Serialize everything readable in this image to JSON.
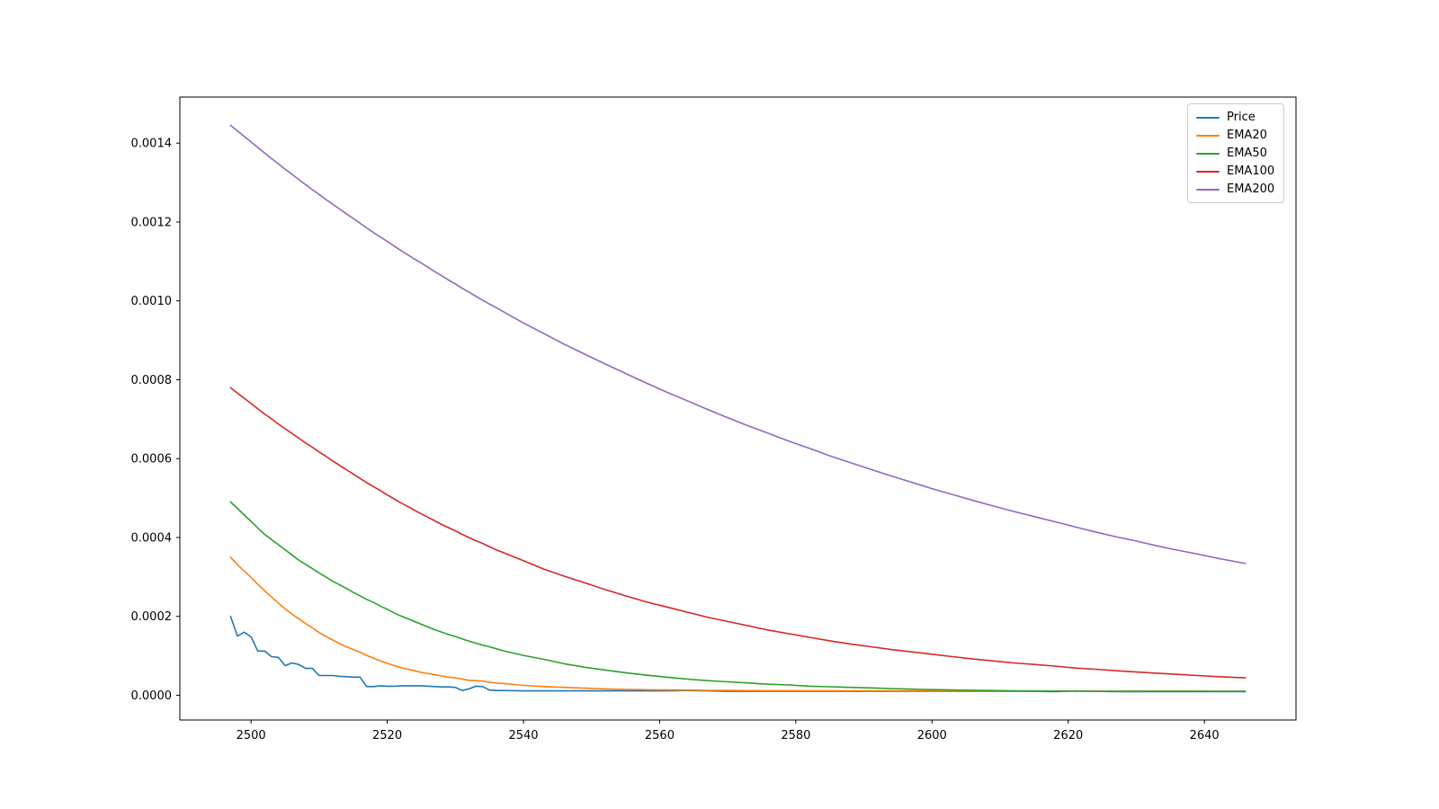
{
  "figure": {
    "background": "#ffffff",
    "axis_color": "#000000",
    "tick_label_color": "#000000"
  },
  "legend": {
    "position": "upper-right",
    "border_color": "#cccccc",
    "background": "#ffffff"
  },
  "chart_data": {
    "type": "line",
    "title": "",
    "xlabel": "",
    "ylabel": "",
    "grid": false,
    "legend_position": "upper right",
    "xlim": [
      2489.55,
      2653.45
    ],
    "ylim": [
      -6.28e-05,
      0.0015168
    ],
    "xticks": [
      2500,
      2520,
      2540,
      2560,
      2580,
      2600,
      2620,
      2640
    ],
    "xtick_labels": [
      "2500",
      "2520",
      "2540",
      "2560",
      "2580",
      "2600",
      "2620",
      "2640"
    ],
    "yticks": [
      0.0,
      0.0002,
      0.0004,
      0.0006,
      0.0008,
      0.001,
      0.0012,
      0.0014
    ],
    "ytick_labels": [
      "0.0000",
      "0.0002",
      "0.0004",
      "0.0006",
      "0.0008",
      "0.0010",
      "0.0012",
      "0.0014"
    ],
    "x": [
      2497,
      2498,
      2499,
      2500,
      2501,
      2502,
      2503,
      2504,
      2505,
      2506,
      2507,
      2508,
      2509,
      2510,
      2511,
      2512,
      2513,
      2514,
      2515,
      2516,
      2517,
      2518,
      2519,
      2520,
      2521,
      2522,
      2523,
      2524,
      2525,
      2526,
      2527,
      2528,
      2529,
      2530,
      2531,
      2532,
      2533,
      2534,
      2535,
      2536,
      2537,
      2540,
      2543,
      2546,
      2549,
      2552,
      2555,
      2558,
      2561,
      2564,
      2567,
      2570,
      2573,
      2576,
      2579,
      2582,
      2585,
      2588,
      2591,
      2594,
      2597,
      2600,
      2603,
      2606,
      2609,
      2612,
      2615,
      2618,
      2621,
      2624,
      2627,
      2630,
      2633,
      2636,
      2639,
      2642,
      2646
    ],
    "series": [
      {
        "name": "Price",
        "color": "#1f77b4",
        "values": [
          0.0002,
          0.00015,
          0.00016,
          0.000148,
          0.000112,
          0.000112,
          9.8e-05,
          9.6e-05,
          7.5e-05,
          8.2e-05,
          7.8e-05,
          6.8e-05,
          6.8e-05,
          5e-05,
          5e-05,
          5e-05,
          4.8e-05,
          4.7e-05,
          4.6e-05,
          4.6e-05,
          2.2e-05,
          2.2e-05,
          2.4e-05,
          2.3e-05,
          2.3e-05,
          2.4e-05,
          2.4e-05,
          2.4e-05,
          2.4e-05,
          2.3e-05,
          2.2e-05,
          2.1e-05,
          2.1e-05,
          2e-05,
          1.2e-05,
          1.6e-05,
          2.3e-05,
          2.2e-05,
          1.3e-05,
          1.2e-05,
          1.2e-05,
          1.1e-05,
          1.1e-05,
          1.1e-05,
          1.1e-05,
          1.1e-05,
          1.1e-05,
          1.1e-05,
          1.1e-05,
          1.2e-05,
          1.1e-05,
          1e-05,
          1e-05,
          1e-05,
          1e-05,
          1e-05,
          1e-05,
          1e-05,
          1e-05,
          1e-05,
          1e-05,
          1e-05,
          1e-05,
          1e-05,
          1e-05,
          1e-05,
          1e-05,
          9e-06,
          1.1e-05,
          1e-05,
          9e-06,
          9e-06,
          9e-06,
          9e-06,
          9e-06,
          9e-06,
          9e-06
        ]
      },
      {
        "name": "EMA20",
        "color": "#ff7f0e",
        "values": [
          0.00035,
          0.000331,
          0.000315,
          0.000299,
          0.000281,
          0.000265,
          0.000249,
          0.000234,
          0.000219,
          0.000206,
          0.000194,
          0.000182,
          0.000171,
          0.000159,
          0.000149,
          0.00014,
          0.000131,
          0.000123,
          0.000116,
          0.000109,
          0.000101,
          9.4e-05,
          8.7e-05,
          8.1e-05,
          7.5e-05,
          7e-05,
          6.6e-05,
          6.2e-05,
          5.8e-05,
          5.5e-05,
          5.2e-05,
          4.9e-05,
          4.6e-05,
          4.4e-05,
          4.1e-05,
          3.8e-05,
          3.7e-05,
          3.6e-05,
          3.3e-05,
          3.1e-05,
          3e-05,
          2.5e-05,
          2.2e-05,
          2e-05,
          1.8e-05,
          1.6e-05,
          1.5e-05,
          1.4e-05,
          1.34e-05,
          1.3e-05,
          1.25e-05,
          1.21e-05,
          1.18e-05,
          1.16e-05,
          1.14e-05,
          1.13e-05,
          1.12e-05,
          1.11e-05,
          1.1e-05,
          1.1e-05,
          1.09e-05,
          1.08e-05,
          1.07e-05,
          1.07e-05,
          1.06e-05,
          1.06e-05,
          1.05e-05,
          1.05e-05,
          1.05e-05,
          1.04e-05,
          1.04e-05,
          1.04e-05,
          1.03e-05,
          1.03e-05,
          1.03e-05,
          1.02e-05,
          1.02e-05
        ]
      },
      {
        "name": "EMA50",
        "color": "#2ca02c",
        "values": [
          0.00049,
          0.000474,
          0.000457,
          0.000441,
          0.000424,
          0.000408,
          0.000395,
          0.000382,
          0.000369,
          0.000356,
          0.000343,
          0.000332,
          0.000321,
          0.00031,
          0.0003,
          0.000289,
          0.00028,
          0.000271,
          0.000261,
          0.000252,
          0.000243,
          0.000235,
          0.000226,
          0.000218,
          0.000209,
          0.000201,
          0.000194,
          0.000187,
          0.00018,
          0.000173,
          0.000166,
          0.00016,
          0.000154,
          0.000149,
          0.000143,
          0.000137,
          0.000132,
          0.000127,
          0.000123,
          0.000118,
          0.000113,
          0.000101,
          9.1e-05,
          8e-05,
          7.1e-05,
          6.4e-05,
          5.7e-05,
          5.1e-05,
          4.6e-05,
          4.1e-05,
          3.7e-05,
          3.4e-05,
          3.1e-05,
          2.8e-05,
          2.6e-05,
          2.3e-05,
          2.15e-05,
          2e-05,
          1.85e-05,
          1.7e-05,
          1.53e-05,
          1.43e-05,
          1.34e-05,
          1.26e-05,
          1.19e-05,
          1.13e-05,
          1.08e-05,
          1.05e-05,
          1.03e-05,
          1.02e-05,
          1.01e-05,
          1.01e-05,
          1e-05,
          1e-05,
          1e-05,
          1e-05,
          1e-05
        ]
      },
      {
        "name": "EMA100",
        "color": "#d62728",
        "values": [
          0.00078,
          0.000766,
          0.000753,
          0.00074,
          0.000726,
          0.000713,
          0.000701,
          0.000688,
          0.000676,
          0.000664,
          0.000652,
          0.00064,
          0.000629,
          0.000617,
          0.000606,
          0.000594,
          0.000583,
          0.000572,
          0.000561,
          0.00055,
          0.000539,
          0.000529,
          0.000519,
          0.000508,
          0.000498,
          0.000488,
          0.000479,
          0.000469,
          0.00046,
          0.000451,
          0.000442,
          0.000433,
          0.000425,
          0.000417,
          0.000408,
          0.0004,
          0.000392,
          0.000385,
          0.000377,
          0.000369,
          0.000362,
          0.000341,
          0.00032,
          0.000302,
          0.000285,
          0.000268,
          0.000252,
          0.000237,
          0.000224,
          0.000211,
          0.000198,
          0.000187,
          0.000176,
          0.000165,
          0.000156,
          0.000147,
          0.000138,
          0.00013,
          0.000123,
          0.000116,
          0.00011,
          0.000104,
          9.8e-05,
          9.2e-05,
          8.7e-05,
          8.2e-05,
          7.8e-05,
          7.4e-05,
          6.9e-05,
          6.6e-05,
          6.2e-05,
          5.9e-05,
          5.6e-05,
          5.3e-05,
          5e-05,
          4.7e-05,
          4.4e-05
        ]
      },
      {
        "name": "EMA200",
        "color": "#9467bd",
        "values": [
          0.001445,
          0.001431,
          0.001417,
          0.001403,
          0.001389,
          0.001375,
          0.001361,
          0.001348,
          0.001334,
          0.001321,
          0.001308,
          0.001295,
          0.001282,
          0.00127,
          0.001257,
          0.001245,
          0.001233,
          0.001221,
          0.001209,
          0.001197,
          0.001185,
          0.001173,
          0.001162,
          0.001151,
          0.001139,
          0.001128,
          0.001117,
          0.001106,
          0.001096,
          0.001085,
          0.001074,
          0.001064,
          0.001053,
          0.001043,
          0.001032,
          0.001022,
          0.001012,
          0.001002,
          0.000992,
          0.000983,
          0.000973,
          0.000944,
          0.000917,
          0.00089,
          0.000865,
          0.00084,
          0.000816,
          0.000792,
          0.000769,
          0.000747,
          0.000725,
          0.000704,
          0.000683,
          0.000664,
          0.000644,
          0.000626,
          0.000607,
          0.00059,
          0.000573,
          0.000556,
          0.00054,
          0.000524,
          0.000509,
          0.000494,
          0.00048,
          0.000466,
          0.000453,
          0.00044,
          0.000427,
          0.000414,
          0.000402,
          0.000391,
          0.000379,
          0.000368,
          0.000358,
          0.000347,
          0.000334
        ]
      }
    ]
  }
}
